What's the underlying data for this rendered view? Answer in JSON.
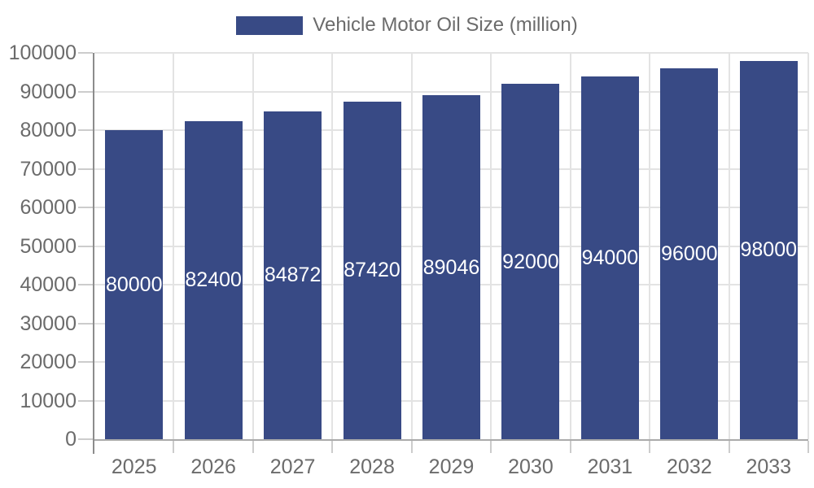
{
  "legend": {
    "label": "Vehicle Motor Oil Size (million)"
  },
  "colors": {
    "bar": "#384a85",
    "grid": "#e3e3e3",
    "tick": "#cccccc",
    "axis_x": "#ababab",
    "axis_y": "#8c8c8c",
    "label_text": "#6b6b6b",
    "value_text": "#ffffff",
    "background": "#ffffff"
  },
  "y_axis": {
    "ticks": [
      "0",
      "10000",
      "20000",
      "30000",
      "40000",
      "50000",
      "60000",
      "70000",
      "80000",
      "90000",
      "100000"
    ]
  },
  "chart_data": {
    "type": "bar",
    "categories": [
      "2025",
      "2026",
      "2027",
      "2028",
      "2029",
      "2030",
      "2031",
      "2032",
      "2033"
    ],
    "series": [
      {
        "name": "Vehicle Motor Oil Size (million)",
        "values": [
          80000,
          82400,
          84872,
          87420,
          89046,
          92000,
          94000,
          96000,
          98000
        ]
      }
    ],
    "title": "",
    "xlabel": "",
    "ylabel": "",
    "ylim": [
      0,
      100000
    ],
    "ytick_step": 10000,
    "grid": true,
    "legend_position": "top",
    "value_labels": "inside-center"
  }
}
